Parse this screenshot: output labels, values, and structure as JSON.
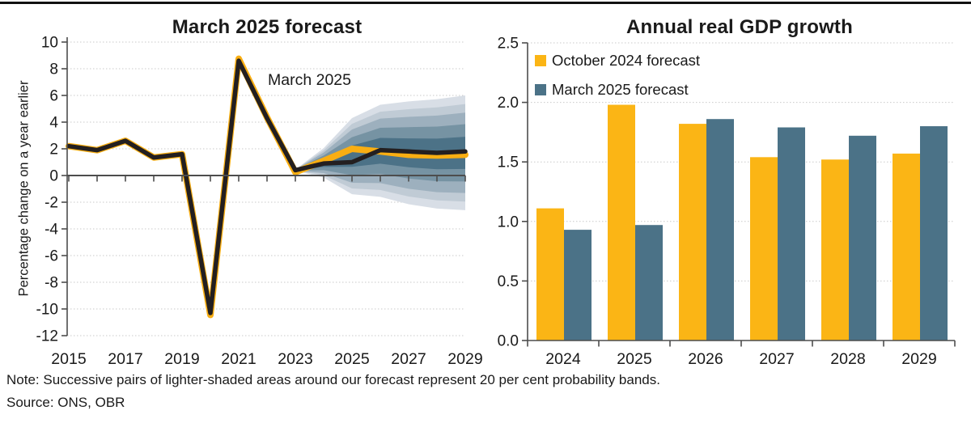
{
  "page": {
    "note": "Note: Successive pairs of lighter-shaded areas around our forecast represent 20 per cent probability bands.",
    "source": "Source: ONS, OBR"
  },
  "colors": {
    "october_yellow": "#FBB515",
    "march_blue": "#4B7287",
    "forecast_line_black": "#231F20",
    "forecast_line_yellow": "#F9AE12",
    "fan_bands_inner_to_outer": [
      "#4C7287",
      "#7693A3",
      "#9DB0BE",
      "#C0CBD5",
      "#D8DEE6"
    ],
    "grid": "#C9C9C9",
    "axis": "#4D4D4D",
    "text": "#1A1A1A"
  },
  "chart_data": [
    {
      "type": "line",
      "title": "March 2025 forecast",
      "ylabel": "Percentage change on a year earlier",
      "annotation": "March 2025",
      "x": [
        2015,
        2016,
        2017,
        2018,
        2019,
        2020,
        2021,
        2022,
        2023,
        2024,
        2025,
        2026,
        2027,
        2028,
        2029
      ],
      "xtick_labels": [
        "2015",
        "2017",
        "2019",
        "2021",
        "2023",
        "2025",
        "2027",
        "2029"
      ],
      "ytick_labels": [
        "10",
        "8",
        "6",
        "4",
        "2",
        "0",
        "-2",
        "-4",
        "-6",
        "-8",
        "-10",
        "-12"
      ],
      "yticks": [
        10,
        8,
        6,
        4,
        2,
        0,
        -2,
        -4,
        -6,
        -8,
        -10,
        -12
      ],
      "ylim": [
        -12,
        10
      ],
      "grid": "dotted-horizontal",
      "series": [
        {
          "name": "October 2024 forecast",
          "color": "#F9AE12",
          "values": [
            2.2,
            1.9,
            2.6,
            1.35,
            1.6,
            -10.45,
            8.75,
            4.35,
            0.25,
            1.1,
            2.0,
            1.8,
            1.55,
            1.5,
            1.55
          ]
        },
        {
          "name": "March 2025",
          "color": "#231F20",
          "values": [
            2.2,
            1.9,
            2.6,
            1.35,
            1.6,
            -10.3,
            8.6,
            4.3,
            0.4,
            0.9,
            1.0,
            1.9,
            1.8,
            1.7,
            1.8
          ]
        }
      ],
      "fan": {
        "x": [
          2023,
          2024,
          2025,
          2026,
          2027,
          2028,
          2029
        ],
        "center": [
          0.4,
          0.95,
          1.45,
          1.85,
          1.7,
          1.62,
          1.7
        ],
        "outer_half_width": [
          0.05,
          1.1,
          2.85,
          3.45,
          3.85,
          4.1,
          4.3
        ],
        "band_fractions": [
          0.28,
          0.5,
          0.7,
          0.85,
          1.0
        ],
        "colors": [
          "#4C7287",
          "#7693A3",
          "#9DB0BE",
          "#C0CBD5",
          "#D8DEE6"
        ],
        "meaning": "20 per cent probability bands"
      }
    },
    {
      "type": "bar",
      "title": "Annual real GDP growth",
      "categories": [
        "2024",
        "2025",
        "2026",
        "2027",
        "2028",
        "2029"
      ],
      "ytick_labels": [
        "0.0",
        "0.5",
        "1.0",
        "1.5",
        "2.0",
        "2.5"
      ],
      "yticks": [
        0,
        0.5,
        1.0,
        1.5,
        2.0,
        2.5
      ],
      "ylim": [
        0,
        2.5
      ],
      "grid": "dotted-horizontal",
      "legend_position": "top-left",
      "series": [
        {
          "name": "October 2024 forecast",
          "color": "#FBB515",
          "values": [
            1.11,
            1.98,
            1.82,
            1.54,
            1.52,
            1.57
          ]
        },
        {
          "name": "March 2025 forecast",
          "color": "#4B7287",
          "values": [
            0.93,
            0.97,
            1.86,
            1.79,
            1.72,
            1.8
          ]
        }
      ]
    }
  ]
}
